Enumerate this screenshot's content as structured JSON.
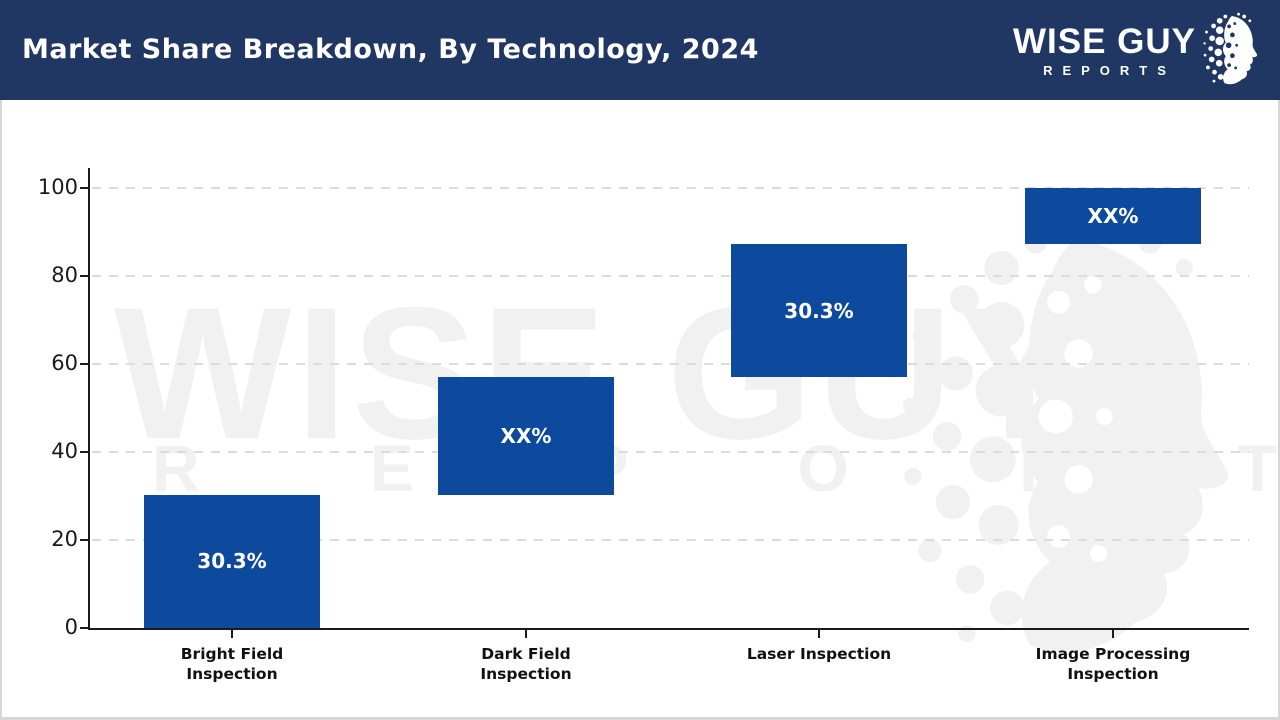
{
  "header": {
    "title": "Market Share Breakdown, By Technology, 2024",
    "bg_color": "#203764",
    "logo": {
      "line1": "WISE GUY",
      "line2": "REPORTS"
    }
  },
  "watermark": {
    "line1": "WISE GUY",
    "line2": "R E P O R T S"
  },
  "chart_data": {
    "type": "bar",
    "subtype": "floating-segment-column",
    "title": "Market Share Breakdown, By Technology, 2024",
    "xlabel": "",
    "ylabel": "",
    "ylim": [
      0,
      100
    ],
    "yticks": [
      0,
      20,
      40,
      60,
      80,
      100
    ],
    "grid": "dashed-horizontal",
    "legend": "none",
    "bar_color": "#0d4a9e",
    "grid_color": "#dcdcdc",
    "axis_color": "#1a1a1a",
    "categories": [
      "Bright Field Inspection",
      "Dark Field Inspection",
      "Laser Inspection",
      "Image Processing Inspection"
    ],
    "bars": [
      {
        "category_lines": [
          "Bright Field",
          "Inspection"
        ],
        "start": 0,
        "end": 30.3,
        "height": 30.3,
        "label": "30.3%"
      },
      {
        "category_lines": [
          "Dark Field",
          "Inspection"
        ],
        "start": 30.3,
        "end": 57.0,
        "height": 26.7,
        "label": "XX%"
      },
      {
        "category_lines": [
          "Laser Inspection"
        ],
        "start": 57.0,
        "end": 87.3,
        "height": 30.3,
        "label": "30.3%"
      },
      {
        "category_lines": [
          "Image Processing",
          "Inspection"
        ],
        "start": 87.3,
        "end": 100,
        "height": 12.7,
        "label": "XX%"
      }
    ]
  }
}
